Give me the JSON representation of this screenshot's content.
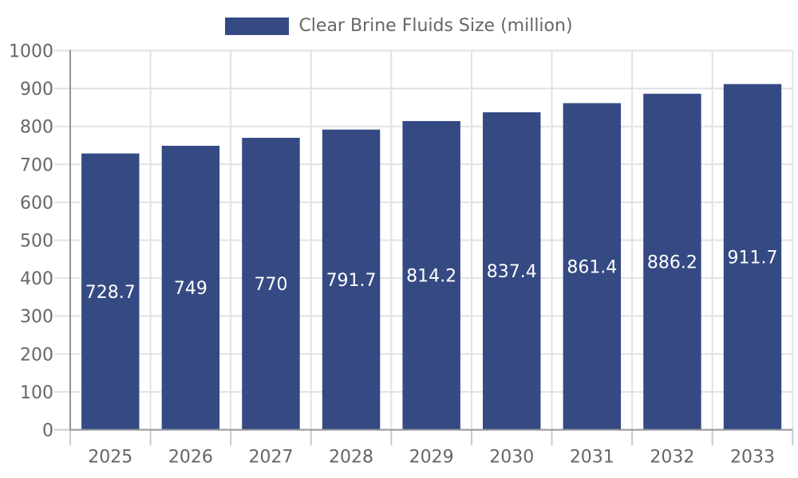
{
  "chart_data": {
    "type": "bar",
    "title": "Clear Brine Fluids Size (million)",
    "legend_position": "top",
    "categories": [
      "2025",
      "2026",
      "2027",
      "2028",
      "2029",
      "2030",
      "2031",
      "2032",
      "2033"
    ],
    "values": [
      728.7,
      749,
      770,
      791.7,
      814.2,
      837.4,
      861.4,
      886.2,
      911.7
    ],
    "bar_value_labels": [
      "728.7",
      "749",
      "770",
      "791.7",
      "814.2",
      "837.4",
      "861.4",
      "886.2",
      "911.7"
    ],
    "series_name": "Clear Brine Fluids Size (million)",
    "xlabel": "",
    "ylabel": "",
    "ylim": [
      0,
      1000
    ],
    "yticks": [
      "0",
      "100",
      "200",
      "300",
      "400",
      "500",
      "600",
      "700",
      "800",
      "900",
      "1000"
    ],
    "grid": true,
    "colors": {
      "bar": "#354a83",
      "bar_label": "#ffffff",
      "axis_label": "#666666",
      "legend_text": "#666666",
      "gridline": "#e1e2e8",
      "tick": "#c6c9d6",
      "axis_line": "#949498",
      "background": "#ffffff"
    }
  }
}
